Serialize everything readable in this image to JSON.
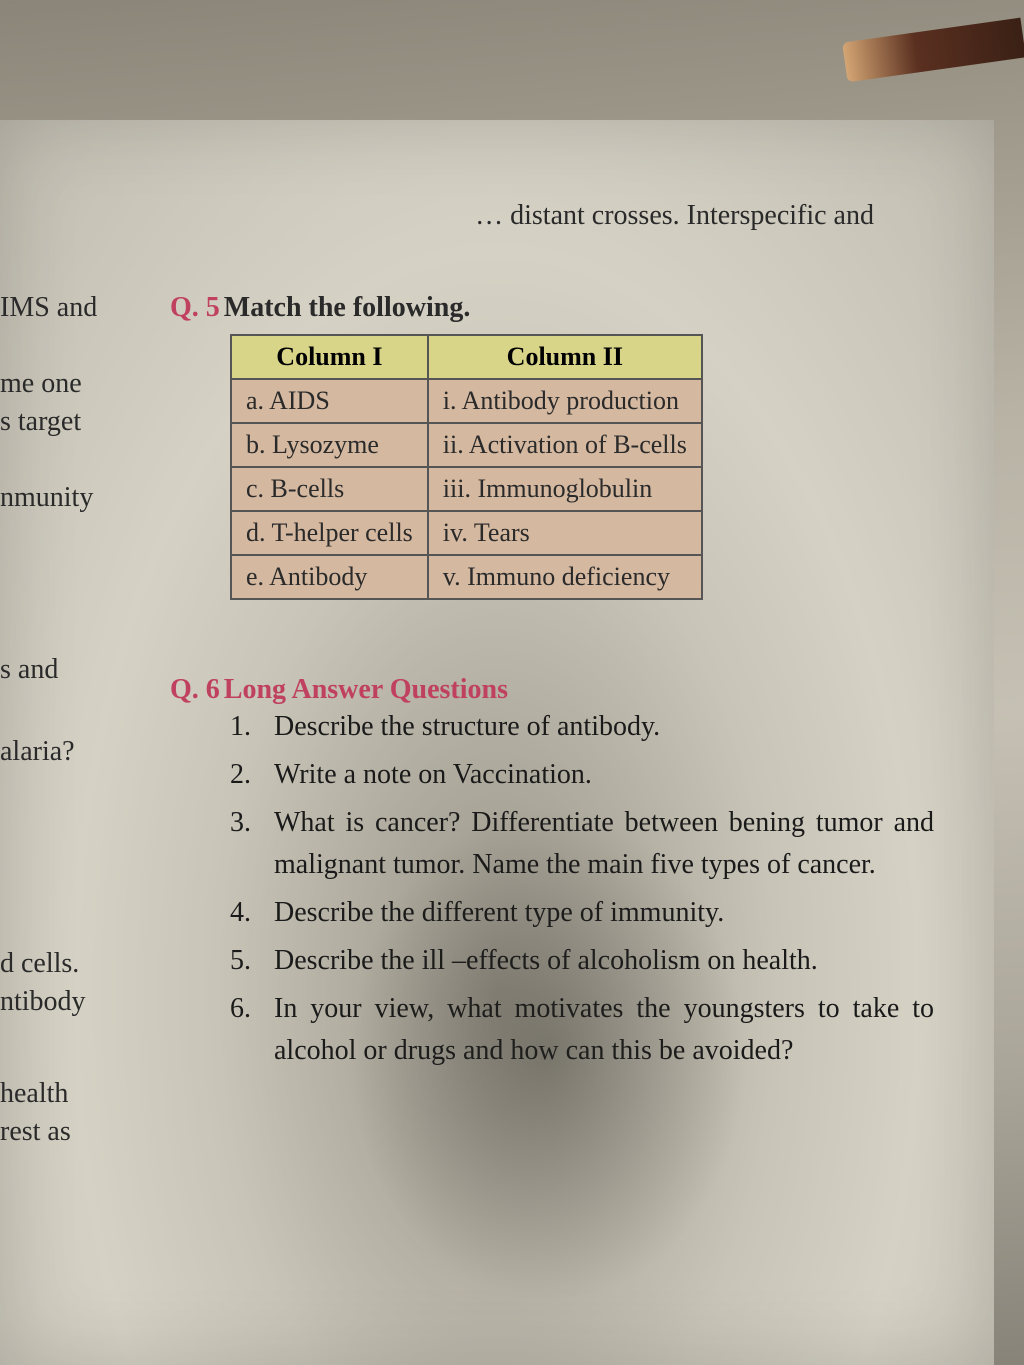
{
  "header_fragment": "… distant crosses. Interspecific and",
  "left_fragments": {
    "f1": "IMS and",
    "f2": "me one",
    "f3": "s target",
    "f4": "nmunity",
    "f5": "s and",
    "f6": "alaria?",
    "f7": "d cells.",
    "f8": "ntibody",
    "f9": "health",
    "f10": "rest as"
  },
  "q5": {
    "label": "Q. 5",
    "title": "Match the following.",
    "table": {
      "headers": [
        "Column I",
        "Column II"
      ],
      "rows": [
        [
          "a. AIDS",
          "i. Antibody production"
        ],
        [
          "b. Lysozyme",
          "ii. Activation of B-cells"
        ],
        [
          "c. B-cells",
          "iii. Immunoglobulin"
        ],
        [
          "d. T-helper cells",
          "iv. Tears"
        ],
        [
          "e. Antibody",
          "v. Immuno deficiency"
        ]
      ]
    }
  },
  "q6": {
    "label": "Q. 6",
    "title": "Long Answer Questions",
    "items": [
      {
        "n": "1.",
        "t": "Describe the structure of antibody."
      },
      {
        "n": "2.",
        "t": "Write a note on Vaccination."
      },
      {
        "n": "3.",
        "t": "What is cancer? Differentiate between bening tumor and malignant tumor. Name the main five types of cancer."
      },
      {
        "n": "4.",
        "t": "Describe the different type of immunity."
      },
      {
        "n": "5.",
        "t": "Describe the ill –effects of alcoholism on health."
      },
      {
        "n": "6.",
        "t": "In your view, what motivates the youngsters to take to alcohol or drugs and how can this be avoided?"
      }
    ]
  },
  "colors": {
    "heading": "#c04060",
    "table_header_bg": "#d8d488",
    "table_cell_bg": "#d4b8a0",
    "border": "#555555",
    "text": "#1a1a1a"
  }
}
